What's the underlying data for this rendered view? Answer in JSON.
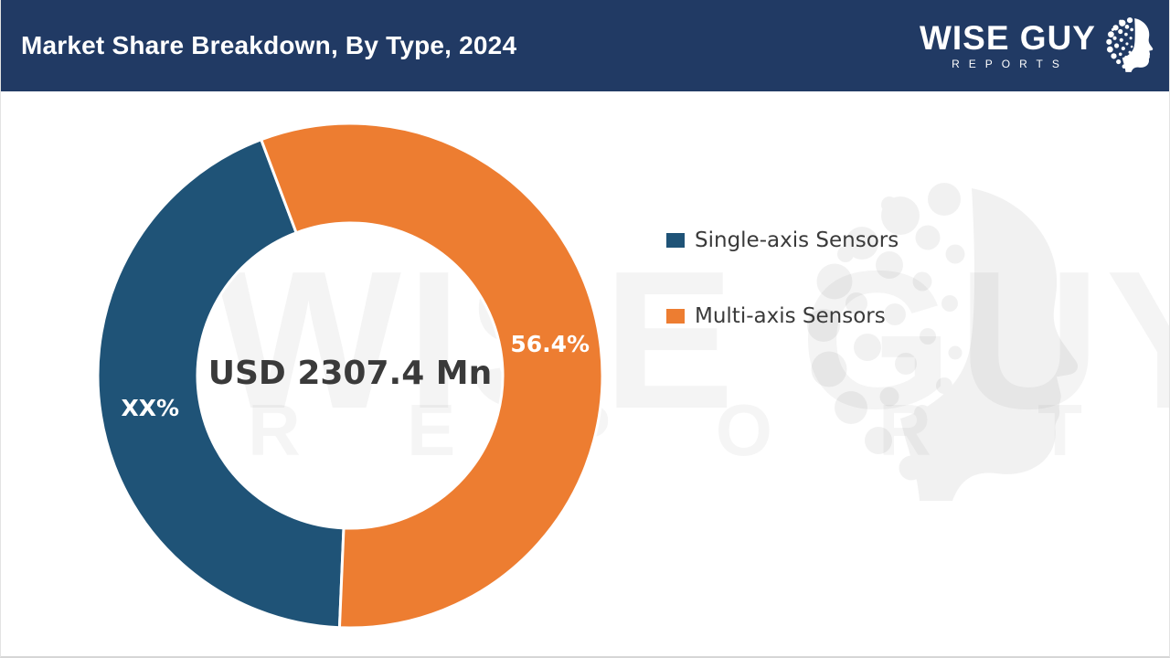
{
  "header": {
    "title": "Market Share Breakdown, By Type, 2024",
    "logo": {
      "brand_line1": "WISE GUY",
      "brand_line2": "REPORTS"
    }
  },
  "chart_data": {
    "type": "donut",
    "title": "Market Share Breakdown, By Type, 2024",
    "center_label": "USD 2307.4 Mn",
    "start_angle_deg": 182.4,
    "inner_radius_ratio": 0.605,
    "legend_position": "right",
    "segments": [
      {
        "label": "Single-axis Sensors",
        "value_pct": 43.6,
        "display_label": "XX%",
        "color": "#1F5377"
      },
      {
        "label": "Multi-axis Sensors",
        "value_pct": 56.4,
        "display_label": "56.4%",
        "color": "#ED7D31"
      }
    ]
  },
  "watermark": {
    "line1": "WISE GUY",
    "line2": "R E P O R T S"
  },
  "colors": {
    "header_bg": "#213A64",
    "center_text": "#3A3A3A",
    "segment_divider": "#FFFFFF"
  }
}
